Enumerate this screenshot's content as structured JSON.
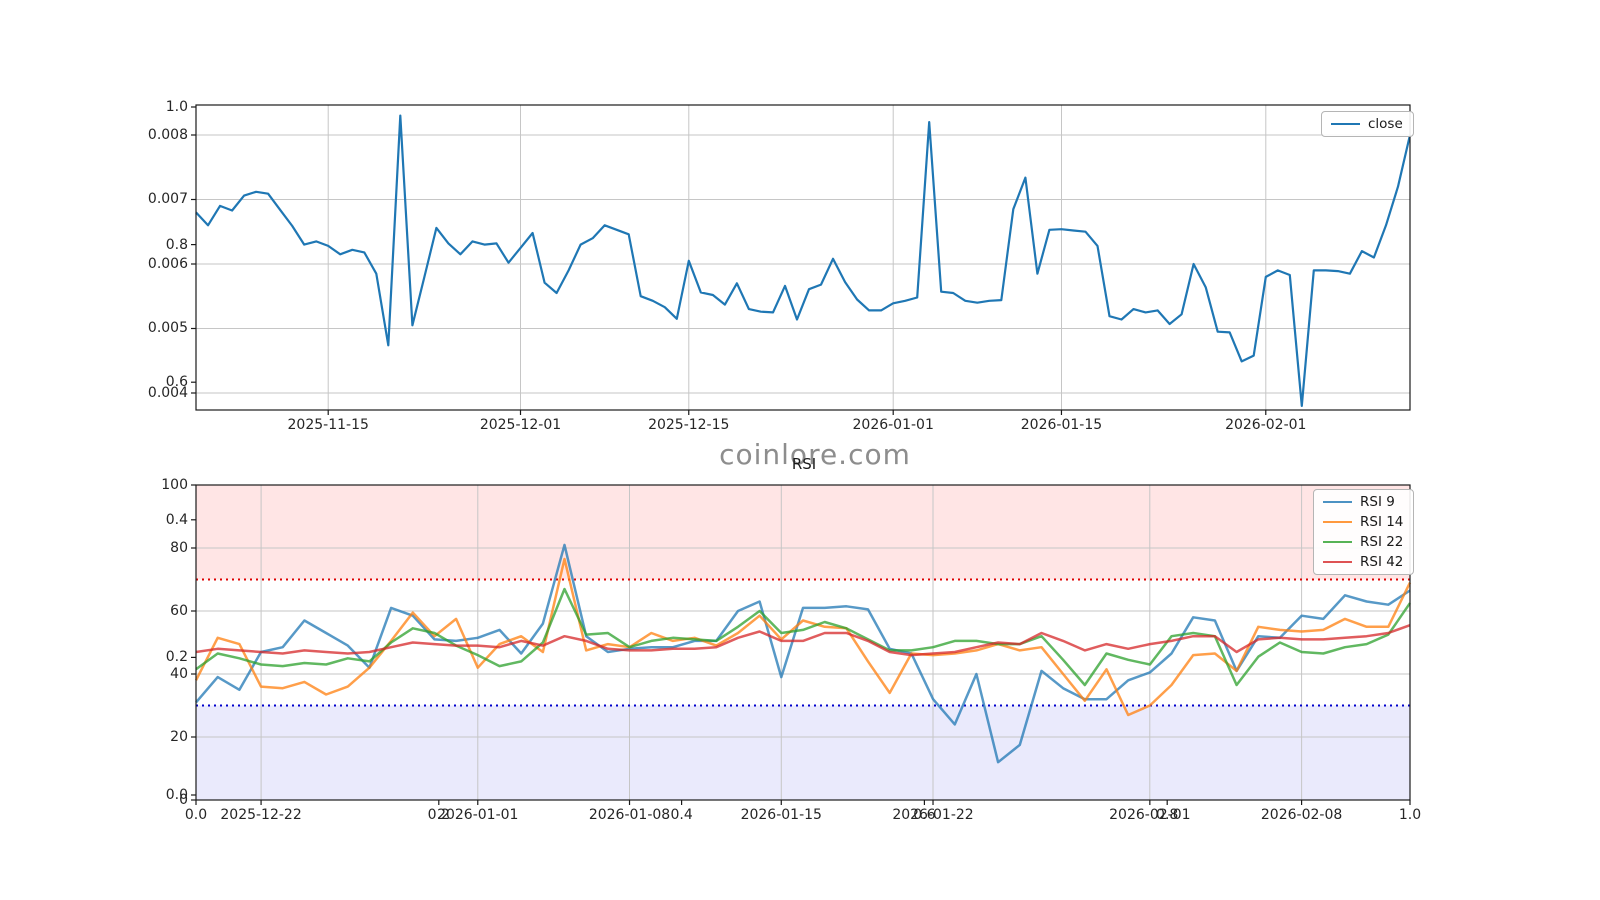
{
  "watermark": "coinlore.com",
  "colors": {
    "close": "#1f77b4",
    "rsi9": "#1f77b4",
    "rsi14": "#ff7f0e",
    "rsi22": "#2ca02c",
    "rsi42": "#d62728",
    "grid": "#c6c6c6",
    "spine": "#1a1a1a",
    "overbought_band": "rgba(255,40,40,0.12)",
    "oversold_band": "rgba(80,80,230,0.12)",
    "overbought_line": "#dd0000",
    "oversold_line": "#0000cc",
    "watermark_color": "#8d8d8d"
  },
  "chart_data": [
    {
      "type": "line",
      "title": "",
      "legend": [
        "close"
      ],
      "legend_position": "upper right",
      "grid": true,
      "x_start_date": "2025-11-04",
      "x_end_date": "2026-02-13",
      "ylim": [
        0.0037364,
        0.0084651
      ],
      "y_tick_values": [
        0.004,
        0.005,
        0.006,
        0.007,
        0.008
      ],
      "y_tick_labels": [
        "0.004",
        "0.005",
        "0.006",
        "0.007",
        "0.008"
      ],
      "x_ticks": [
        {
          "label": "2025-11-15",
          "f": 0.1089
        },
        {
          "label": "2025-12-01",
          "f": 0.2673
        },
        {
          "label": "2025-12-15",
          "f": 0.4059
        },
        {
          "label": "2026-01-01",
          "f": 0.5743
        },
        {
          "label": "2026-01-15",
          "f": 0.7129
        },
        {
          "label": "2026-02-01",
          "f": 0.8812
        }
      ],
      "series": [
        {
          "name": "close",
          "color_key": "close",
          "values": [
            0.0068,
            0.0066,
            0.0069,
            0.00683,
            0.00706,
            0.00712,
            0.00709,
            0.00684,
            0.00659,
            0.0063,
            0.00635,
            0.00628,
            0.00615,
            0.00622,
            0.00618,
            0.00585,
            0.00474,
            0.0083,
            0.00505,
            0.0058,
            0.00656,
            0.00632,
            0.00615,
            0.00635,
            0.0063,
            0.00632,
            0.00602,
            0.00625,
            0.00648,
            0.00571,
            0.00555,
            0.0059,
            0.0063,
            0.0064,
            0.0066,
            0.00653,
            0.00646,
            0.0055,
            0.00543,
            0.00533,
            0.00515,
            0.00605,
            0.00556,
            0.00552,
            0.00537,
            0.0057,
            0.0053,
            0.00526,
            0.00525,
            0.00566,
            0.00514,
            0.00561,
            0.00568,
            0.00608,
            0.00572,
            0.00545,
            0.00528,
            0.00528,
            0.00539,
            0.00543,
            0.00548,
            0.0082,
            0.00557,
            0.00555,
            0.00543,
            0.0054,
            0.00543,
            0.00544,
            0.00685,
            0.00734,
            0.00585,
            0.00653,
            0.00654,
            0.00652,
            0.0065,
            0.00628,
            0.00519,
            0.00514,
            0.0053,
            0.00525,
            0.00528,
            0.00507,
            0.00522,
            0.006,
            0.00564,
            0.00495,
            0.00494,
            0.00449,
            0.00458,
            0.0058,
            0.0059,
            0.00583,
            0.0038,
            0.0059,
            0.0059,
            0.00589,
            0.00585,
            0.0062,
            0.0061,
            0.0066,
            0.0072,
            0.008
          ]
        }
      ]
    },
    {
      "type": "line",
      "title": "RSI",
      "legend": [
        "RSI 9",
        "RSI 14",
        "RSI 22",
        "RSI 42"
      ],
      "legend_position": "upper right",
      "grid": true,
      "x_start_date": "2025-12-19",
      "x_end_date": "2026-02-13",
      "ylim": [
        0,
        100
      ],
      "y_tick_values": [
        0,
        20,
        40,
        60,
        80,
        100
      ],
      "y_tick_labels": [
        "0",
        "20",
        "40",
        "60",
        "80",
        "100"
      ],
      "overbought_level": 70,
      "oversold_level": 30,
      "x_ticks": [
        {
          "label": "2025-12-22",
          "f": 0.0536
        },
        {
          "label": "2026-01-01",
          "f": 0.2321
        },
        {
          "label": "2026-01-08",
          "f": 0.3571
        },
        {
          "label": "2026-01-15",
          "f": 0.4821
        },
        {
          "label": "2026-01-22",
          "f": 0.6071
        },
        {
          "label": "2026-02-01",
          "f": 0.7857
        },
        {
          "label": "2026-02-08",
          "f": 0.9107
        }
      ],
      "series": [
        {
          "name": "RSI 9",
          "color_key": "rsi9",
          "values": [
            31,
            39,
            35,
            47,
            48.5,
            57,
            53,
            49,
            42,
            61,
            58.5,
            51,
            50.5,
            51.5,
            54,
            46.5,
            56,
            81,
            52,
            47,
            48,
            48.5,
            48.5,
            50.5,
            50.5,
            60,
            63,
            39,
            61,
            61,
            61.5,
            60.5,
            48,
            46.5,
            32,
            24,
            40,
            12,
            17.5,
            41,
            35.5,
            32,
            32,
            38,
            40.5,
            46.5,
            58,
            57,
            41,
            52,
            51.5,
            58.5,
            57.5,
            65,
            63,
            62,
            66.5
          ]
        },
        {
          "name": "RSI 14",
          "color_key": "rsi14",
          "values": [
            38,
            51.5,
            49.5,
            36,
            35.5,
            37.5,
            33.5,
            36,
            42,
            50.5,
            59.5,
            52,
            57.5,
            42,
            49.5,
            52,
            47,
            76.5,
            47.5,
            49.5,
            48.5,
            53,
            50.5,
            51.5,
            49,
            53,
            58.5,
            51,
            57,
            55,
            54.5,
            44,
            34,
            46.5,
            46,
            46.5,
            47.5,
            49.5,
            47.5,
            48.5,
            40,
            31.5,
            41.5,
            27,
            30,
            36.5,
            46,
            46.5,
            41,
            55,
            54,
            53.5,
            54,
            57.5,
            55,
            55,
            69
          ]
        },
        {
          "name": "RSI 22",
          "color_key": "rsi22",
          "values": [
            41.5,
            46.5,
            45,
            43,
            42.5,
            43.5,
            43,
            45,
            44,
            50,
            54.5,
            53,
            49,
            46,
            42.5,
            44,
            50,
            67,
            52.5,
            53,
            48.5,
            50.5,
            51.5,
            51,
            50.5,
            55,
            60,
            53,
            54,
            56.5,
            54.5,
            51,
            47.5,
            47.5,
            48.5,
            50.5,
            50.5,
            49.5,
            49.5,
            52,
            44.5,
            36.5,
            46.5,
            44.5,
            43,
            52,
            53,
            52,
            36.5,
            45.5,
            50,
            47,
            46.5,
            48.5,
            49.5,
            52.5,
            62.5
          ]
        },
        {
          "name": "RSI 42",
          "color_key": "rsi42",
          "values": [
            47,
            48,
            47.5,
            47,
            46.5,
            47.5,
            47,
            46.5,
            47,
            48.5,
            50,
            49.5,
            49,
            49,
            48.5,
            50.5,
            49,
            52,
            50.5,
            48,
            47.5,
            47.5,
            48,
            48,
            48.5,
            51.5,
            53.5,
            50.5,
            50.5,
            53,
            53,
            50.5,
            47,
            46,
            46.5,
            47,
            48.5,
            50,
            49.5,
            53,
            50.5,
            47.5,
            49.5,
            48,
            49.5,
            50.5,
            52,
            52,
            47,
            51,
            51.5,
            51,
            51,
            51.5,
            52,
            53,
            55.5
          ]
        }
      ]
    }
  ],
  "overlay_axis": {
    "x_tick_labels": [
      "0.0",
      "0.2",
      "0.4",
      "0.6",
      "0.8",
      "1.0"
    ],
    "y_tick_labels": [
      "0.0",
      "0.2",
      "0.4",
      "0.6",
      "0.8",
      "1.0"
    ]
  }
}
